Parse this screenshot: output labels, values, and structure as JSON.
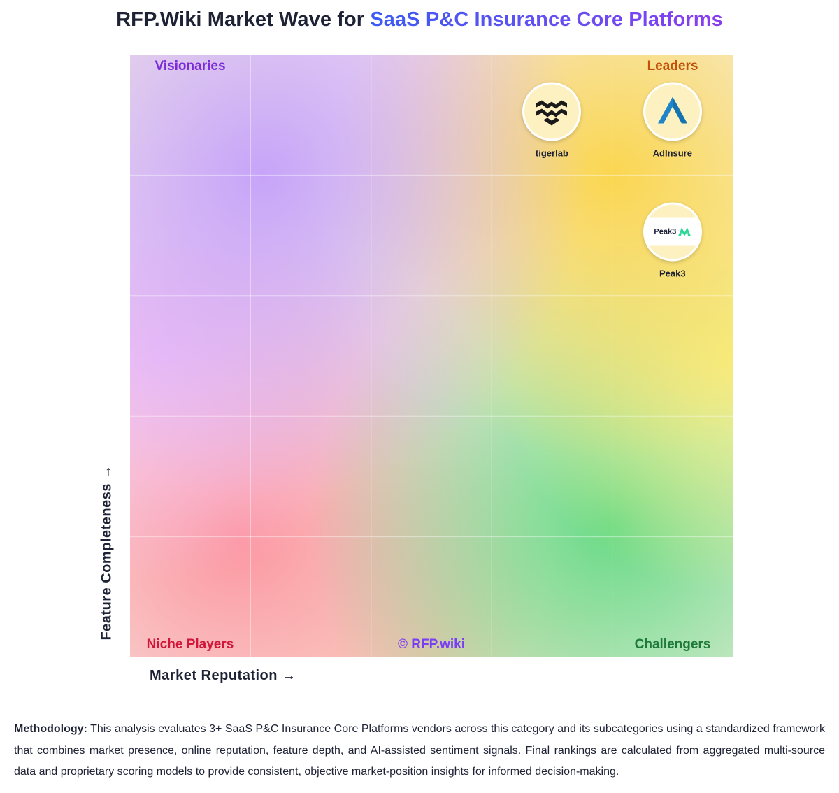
{
  "title": {
    "prefix": "RFP.Wiki Market Wave for ",
    "highlight": "SaaS P&C Insurance Core Platforms"
  },
  "colors": {
    "visionaries": "#7b2cd6",
    "leaders": "#c0500a",
    "niche": "#d0173a",
    "challengers": "#1f7a3a",
    "watermark": "#7a3ff2",
    "adinsure_logo": "#1e86c8",
    "peak3_logo": "#2fd69a"
  },
  "chart_data": {
    "type": "scatter",
    "x_axis": {
      "label": "Market Reputation →",
      "range": [
        0,
        100
      ]
    },
    "y_axis": {
      "label": "Feature Completeness →",
      "range": [
        0,
        100
      ]
    },
    "grid": true,
    "quadrants": {
      "top_left": "Visionaries",
      "top_right": "Leaders",
      "bottom_left": "Niche Players",
      "bottom_right": "Challengers"
    },
    "watermark": "© RFP.wiki",
    "points": [
      {
        "name": "tigerlab",
        "logo": "tigerlab-icon",
        "x": 70,
        "y": 91
      },
      {
        "name": "AdInsure",
        "logo": "adinsure-icon",
        "x": 90,
        "y": 91
      },
      {
        "name": "Peak3",
        "logo": "peak3-icon",
        "logo_text": "Peak3",
        "x": 90,
        "y": 71
      }
    ]
  },
  "methodology": {
    "label": "Methodology:",
    "text": " This analysis evaluates 3+ SaaS P&C Insurance Core Platforms vendors across this category and its subcategories using a standardized framework that combines market presence, online reputation, feature depth, and AI-assisted sentiment signals. Final rankings are calculated from aggregated multi-source data and proprietary scoring models to provide consistent, objective market-position insights for informed decision-making."
  }
}
